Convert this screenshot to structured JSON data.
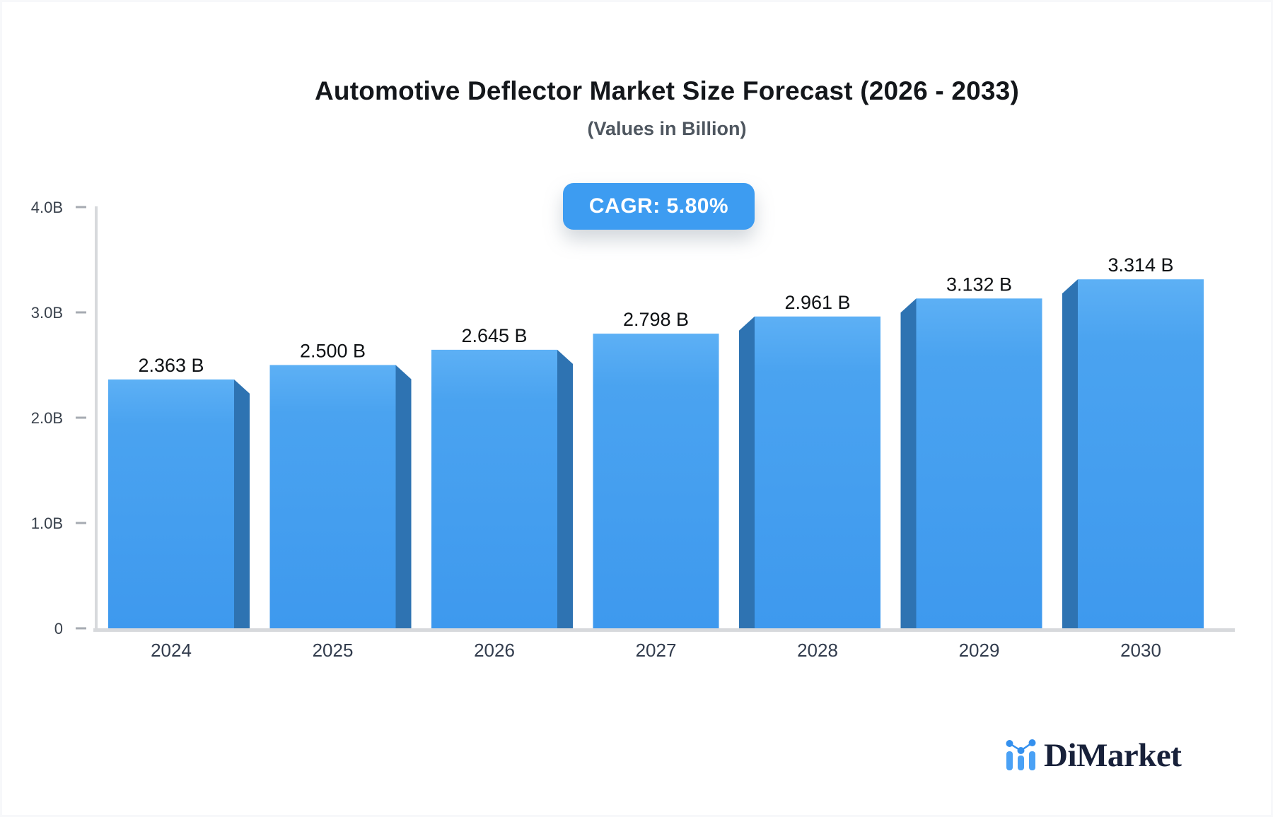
{
  "header": {
    "title": "Automotive Deflector Market Size Forecast (2026 - 2033)",
    "subtitle": "(Values in Billion)"
  },
  "cagr_badge": {
    "label": "CAGR: 5.80%",
    "background": "#3d9cf1",
    "text_color": "#ffffff"
  },
  "chart_data": {
    "type": "bar",
    "title": "Automotive Deflector Market Size Forecast (2026 - 2033)",
    "subtitle": "(Values in Billion)",
    "categories": [
      "2024",
      "2025",
      "2026",
      "2027",
      "2028",
      "2029",
      "2030"
    ],
    "values": [
      2.363,
      2.5,
      2.645,
      2.798,
      2.961,
      3.132,
      3.314
    ],
    "value_labels": [
      "2.363 B",
      "2.500 B",
      "2.645 B",
      "2.798 B",
      "2.961 B",
      "3.132 B",
      "3.314 B"
    ],
    "unit": "Billion",
    "xlabel": "",
    "ylabel": "",
    "ylim": [
      0,
      4
    ],
    "yticks": [
      {
        "value": 0,
        "label": "0"
      },
      {
        "value": 1,
        "label": "1.0B"
      },
      {
        "value": 2,
        "label": "2.0B"
      },
      {
        "value": 3,
        "label": "3.0B"
      },
      {
        "value": 4,
        "label": "4.0B"
      }
    ],
    "grid": false,
    "legend": false,
    "style_3d": true,
    "bar_color_top": "#5db0f5",
    "bar_color_mid": "#4aa3f0",
    "bar_color_bottom": "#3e99ee",
    "bar_side_color": "#2e73b2",
    "axis_line_color": "#d7d9dc",
    "tick_color": "#a6abb2",
    "tick_label_color": "#39414c",
    "category_label_color": "#323c4d",
    "value_label_color": "#0e1114"
  },
  "logo": {
    "text": "DiMarket",
    "icon": "bar-chart-trend-icon",
    "text_color": "#18213a",
    "icon_bar_color": "#4aa1f5",
    "icon_dot_color": "#3490ee"
  }
}
